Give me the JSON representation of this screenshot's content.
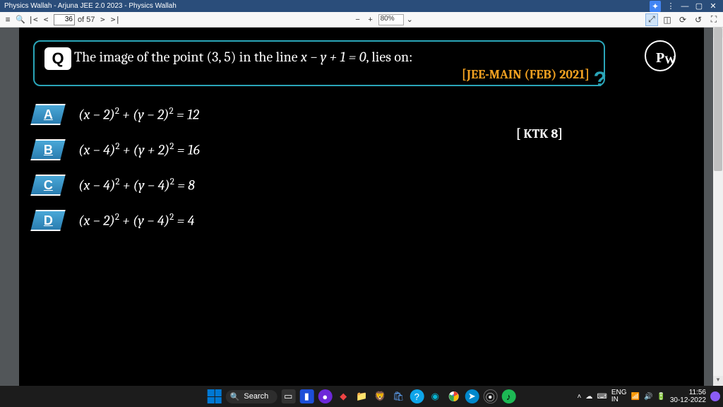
{
  "titlebar": {
    "title": "Physics Wallah - Arjuna JEE 2.0 2023 - Physics Wallah",
    "minimize": "—",
    "maximize": "▢",
    "close": "✕",
    "menu": "⋮"
  },
  "toolbar": {
    "hamburger": "≡",
    "search": "🔍",
    "first": "|<",
    "prev": "<",
    "page_current": "36",
    "page_of": "of 57",
    "next": ">",
    "last": ">|",
    "zoom_out": "−",
    "zoom_in": "+",
    "zoom_level": "80%",
    "chevron": "⌄"
  },
  "question": {
    "badge": "Q",
    "text_prefix": "The image of the point (3, 5) in the line ",
    "text_equation": "x − y + 1 = 0",
    "text_suffix": ", lies on:",
    "exam": "[JEE-MAIN  (FEB) 2021]",
    "mark": "?"
  },
  "options": {
    "A": {
      "label": "A",
      "eq": "(x − 2)<sup>2</sup> + (y − 2)<sup>2</sup> = 12"
    },
    "B": {
      "label": "B",
      "eq": "(x − 4)<sup>2</sup> + (y + 2)<sup>2</sup> = 16"
    },
    "C": {
      "label": "C",
      "eq": "(x − 4)<sup>2</sup> + (y − 4)<sup>2</sup> = 8"
    },
    "D": {
      "label": "D",
      "eq": "(x − 2)<sup>2</sup> + (y − 4)<sup>2</sup> = 4"
    }
  },
  "ktk": "[ KTK 8]",
  "pw_logo": "P W",
  "taskbar": {
    "search_label": "Search",
    "lang": "ENG",
    "region": "IN",
    "time": "11:56",
    "date": "30-12-2022"
  },
  "colors": {
    "titlebar_bg": "#2a4d7a",
    "page_bg": "#000000",
    "qbox_border": "#2aa5b8",
    "exam_color": "#f0a020",
    "opt_badge_top": "#4aa8d8",
    "opt_badge_bottom": "#2a7db0",
    "taskbar_bg": "#1c1c1c"
  }
}
